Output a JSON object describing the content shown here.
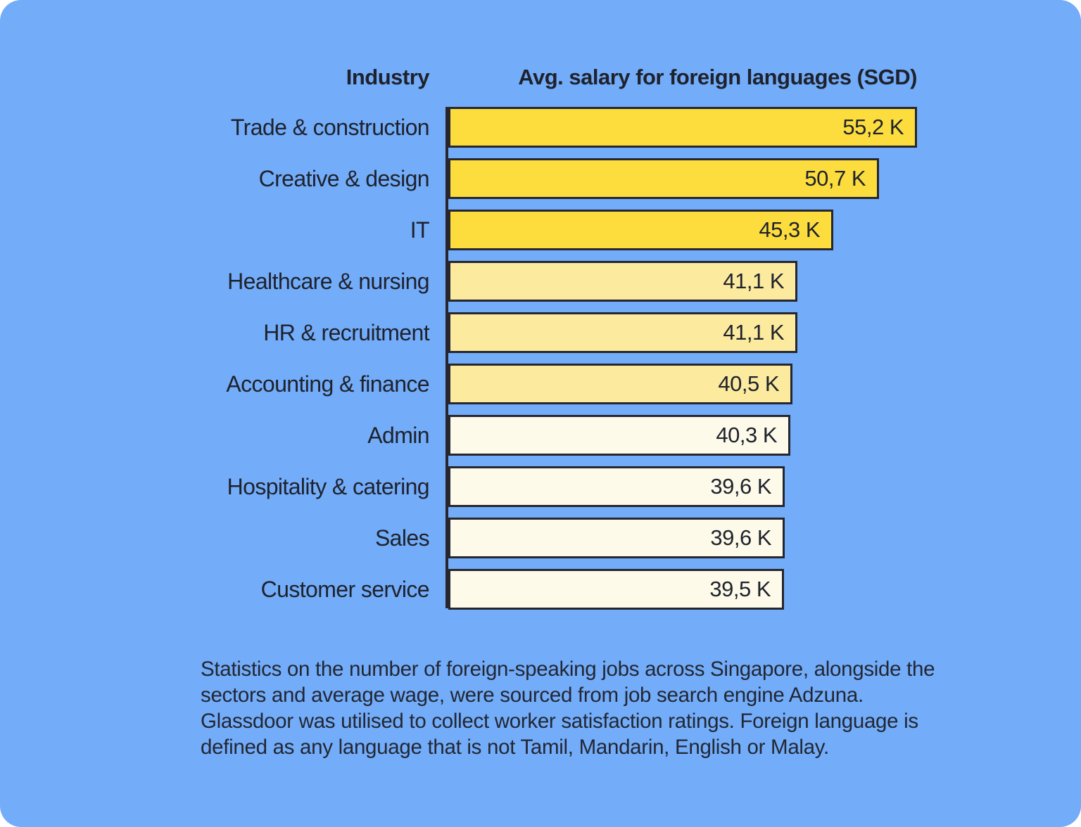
{
  "colors": {
    "card_background": "#73ACF9",
    "bar_yellow": "#FDDD3D",
    "bar_light_yellow": "#FCEA9E",
    "bar_cream": "#FEFAEA",
    "outline": "#26262E",
    "text": "#1E222C"
  },
  "headers": {
    "industry": "Industry",
    "salary": "Avg. salary for foreign languages (SGD)"
  },
  "chart_data": {
    "type": "bar",
    "orientation": "horizontal",
    "title": "Avg. salary for foreign languages (SGD)",
    "xlabel": "Avg. salary for foreign languages (SGD)",
    "ylabel": "Industry",
    "unit": "K SGD",
    "categories": [
      "Trade & construction",
      "Creative & design",
      "IT",
      "Healthcare & nursing",
      "HR & recruitment",
      "Accounting & finance",
      "Admin",
      "Hospitality & catering",
      "Sales",
      "Customer service"
    ],
    "values": [
      55.2,
      50.7,
      45.3,
      41.1,
      41.1,
      40.5,
      40.3,
      39.6,
      39.6,
      39.5
    ],
    "value_labels": [
      "55,2 K",
      "50,7 K",
      "45,3 K",
      "41,1 K",
      "41,1 K",
      "40,5 K",
      "40,3 K",
      "39,6 K",
      "39,6 K",
      "39,5 K"
    ],
    "bar_colors": [
      "#FDDD3D",
      "#FDDD3D",
      "#FDDD3D",
      "#FCEA9E",
      "#FCEA9E",
      "#FCEA9E",
      "#FEFAEA",
      "#FEFAEA",
      "#FEFAEA",
      "#FEFAEA"
    ],
    "xlim": [
      0,
      55.2
    ],
    "grid": false,
    "legend": false
  },
  "footnote": "Statistics on the number of foreign-speaking jobs across Singapore, alongside the sectors and average wage, were sourced from job search engine Adzuna. Glassdoor was utilised to collect worker satisfaction ratings. Foreign language is defined as any language that is not Tamil, Mandarin, English or Malay."
}
